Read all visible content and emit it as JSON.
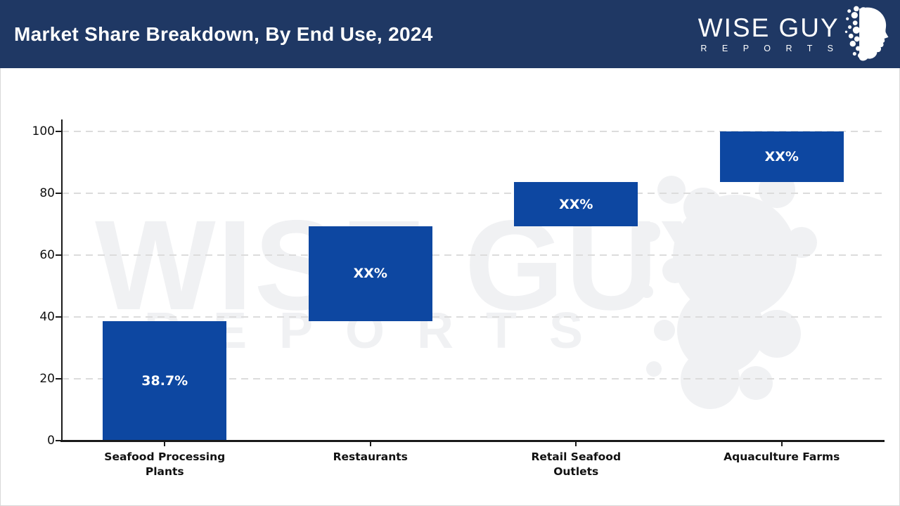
{
  "header": {
    "title": "Market Share Breakdown, By End Use, 2024",
    "background_color": "#1f3864",
    "logo": {
      "line1": "WISE GUY",
      "line2": "R E P O R T S"
    }
  },
  "watermark": {
    "line1": "WISE GUY",
    "line2": "REPORTS"
  },
  "chart_data": {
    "type": "bar",
    "subtype": "waterfall",
    "title": "Market Share Breakdown, By End Use, 2024",
    "categories": [
      "Seafood Processing\nPlants",
      "Restaurants",
      "Retail Seafood\nOutlets",
      "Aquaculture Farms"
    ],
    "segments": [
      {
        "category": "Seafood Processing Plants",
        "start": 0,
        "end": 38.7,
        "value_label": "38.7%"
      },
      {
        "category": "Restaurants",
        "start": 38.7,
        "end": 69.3,
        "value_label": "XX%"
      },
      {
        "category": "Retail Seafood Outlets",
        "start": 69.3,
        "end": 83.6,
        "value_label": "XX%"
      },
      {
        "category": "Aquaculture Farms",
        "start": 83.6,
        "end": 100,
        "value_label": "XX%"
      }
    ],
    "yticks": [
      0,
      20,
      40,
      60,
      80,
      100
    ],
    "ylim": [
      0,
      104
    ],
    "xlabel": "",
    "ylabel": "",
    "bar_color": "#0d47a1",
    "value_label_color": "#ffffff",
    "grid": "horizontal-dashed",
    "gridline_color": "#dcdcdc",
    "axis_color": "#1a1a1a",
    "legend": "none"
  }
}
